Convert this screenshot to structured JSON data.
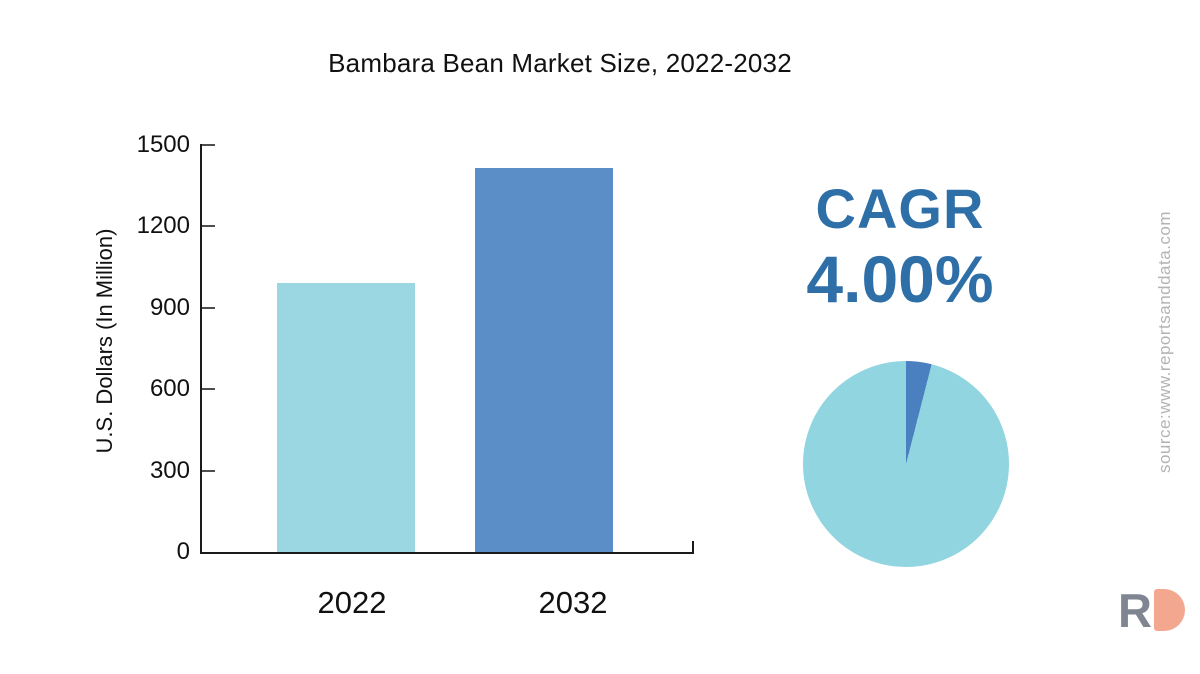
{
  "title": "Bambara Bean Market Size, 2022-2032",
  "chart_data": {
    "type": "bar",
    "title": "Bambara Bean Market Size, 2022-2032",
    "categories": [
      "2022",
      "2032"
    ],
    "values": [
      990,
      1415
    ],
    "xlabel": "",
    "ylabel": "U.S. Dollars (In Million)",
    "ylim": [
      0,
      1500
    ],
    "yticks": [
      0,
      300,
      600,
      900,
      1200,
      1500
    ],
    "bar_colors": [
      "#9ad7e2",
      "#5b8ec6"
    ],
    "grid": false,
    "legend": false
  },
  "cagr": {
    "label": "CAGR",
    "value": "4.00%",
    "text_color": "#2f6fa8",
    "pie": {
      "slice_percent": 4,
      "slice_color": "#4a80c0",
      "base_color": "#90d5e0"
    }
  },
  "source": "source:www.reportsanddata.com",
  "logo": {
    "letter_r": "R",
    "color_r": "#7f8691",
    "color_d": "#f2a78e"
  }
}
